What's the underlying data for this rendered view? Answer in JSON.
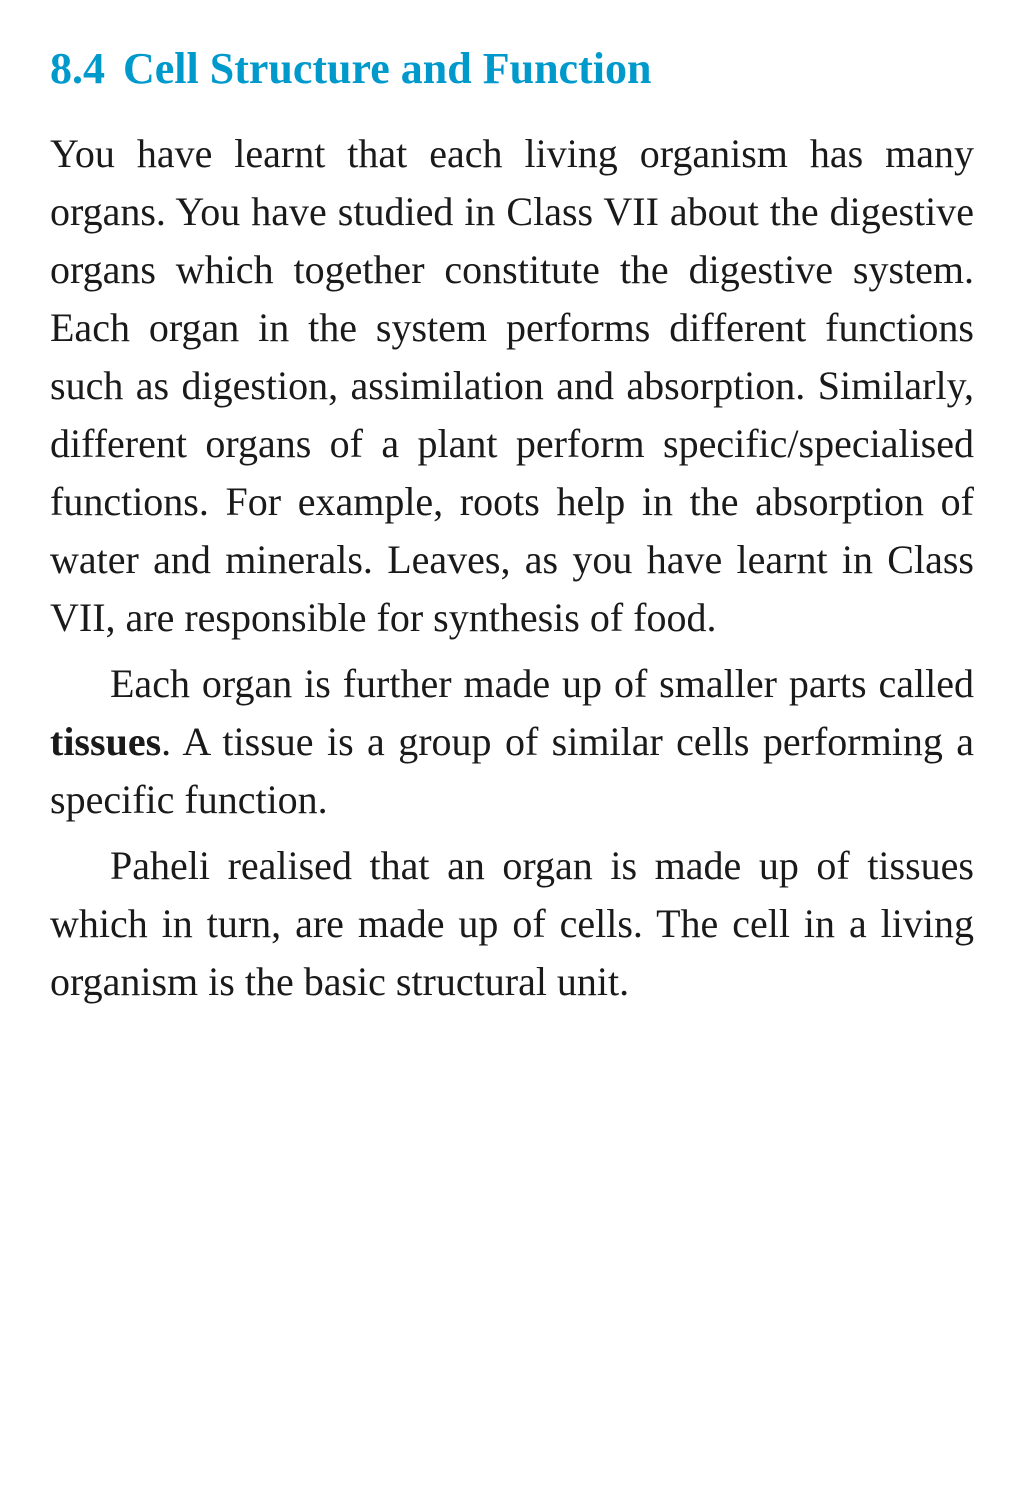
{
  "heading": {
    "number": "8.4",
    "title": "Cell Structure and Function",
    "color": "#0099cc",
    "fontsize": 44
  },
  "paragraphs": [
    {
      "indent": false,
      "runs": [
        {
          "text": "You have learnt that each living organism has many organs. You have studied in Class VII about the digestive organs which together constitute the digestive system. Each organ in the system performs different functions such as digestion, assimilation and absorption. Similarly, different organs of a plant perform specific/specialised functions. For example, roots help in the absorption of water and minerals. Leaves, as you have learnt in Class VII, are responsible for synthesis of food.",
          "bold": false
        }
      ]
    },
    {
      "indent": true,
      "runs": [
        {
          "text": "Each organ is further made up of smaller parts called ",
          "bold": false
        },
        {
          "text": "tissues",
          "bold": true
        },
        {
          "text": ". A tissue is a group of similar cells performing a specific function.",
          "bold": false
        }
      ]
    },
    {
      "indent": true,
      "runs": [
        {
          "text": "Paheli realised that an organ is made up of tissues which in turn, are made up of cells. The cell in a living organism is the basic structural unit.",
          "bold": false
        }
      ]
    }
  ],
  "body": {
    "color": "#1a1a1a",
    "fontsize": 40,
    "background": "#ffffff"
  }
}
